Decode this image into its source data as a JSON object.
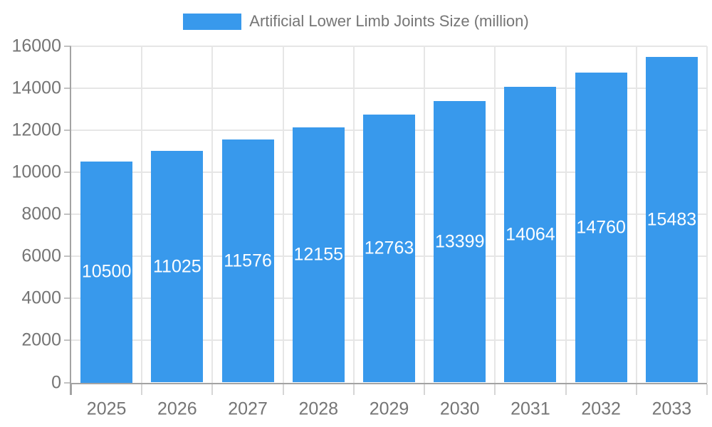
{
  "legend": {
    "label": "Artificial Lower Limb Joints Size (million)"
  },
  "colors": {
    "bar": "#3899EC",
    "bar_label": "#FFFFFF",
    "axis_line": "#A3A3A3",
    "grid_line": "#E6E6E6",
    "y_tick": "#C2C2C2",
    "x_tick": "#D6D6D6",
    "text": "#757575",
    "background": "#FFFFFF"
  },
  "chart_data": {
    "type": "bar",
    "title": "",
    "xlabel": "",
    "ylabel": "",
    "categories": [
      "2025",
      "2026",
      "2027",
      "2028",
      "2029",
      "2030",
      "2031",
      "2032",
      "2033"
    ],
    "series": [
      {
        "name": "Artificial Lower Limb Joints Size (million)",
        "values": [
          10500,
          11025,
          11576,
          12155,
          12763,
          13399,
          14064,
          14760,
          15483
        ]
      }
    ],
    "ylim": [
      0,
      16000
    ],
    "yticks": [
      0,
      2000,
      4000,
      6000,
      8000,
      10000,
      12000,
      14000,
      16000
    ],
    "grid": "both",
    "legend_position": "top-center",
    "bar_labels": "inside-middle"
  }
}
